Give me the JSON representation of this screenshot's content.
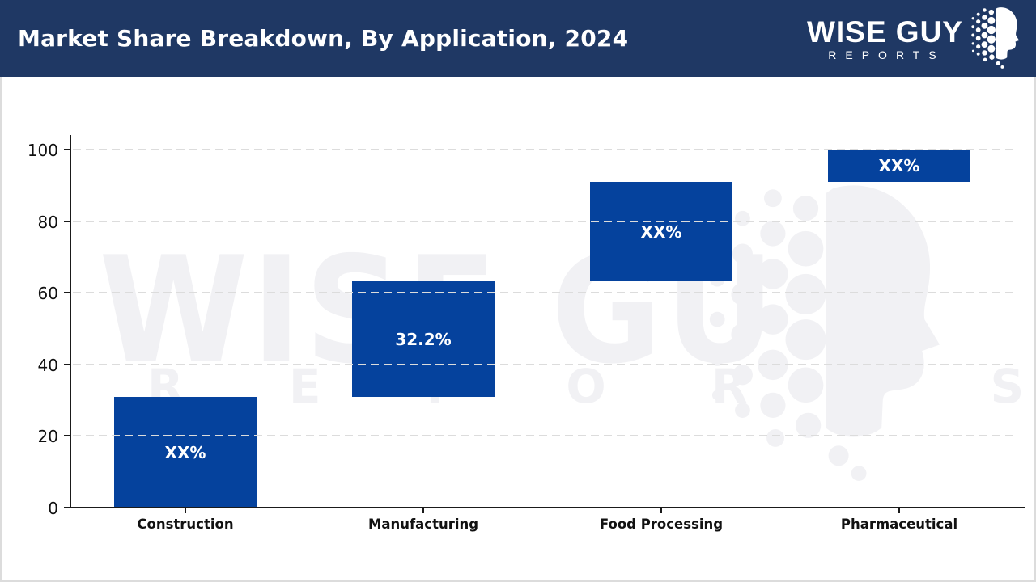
{
  "header": {
    "title": "Market Share Breakdown, By Application, 2024",
    "logo": {
      "line1": "WISE GUY",
      "line2": "REPORTS"
    }
  },
  "watermark": {
    "line1": "WISE GU",
    "line2": "R E P O R T S"
  },
  "colors": {
    "header_bg": "#1F3864",
    "bar": "#05429D",
    "axis": "#1A1A1A",
    "grid": "#DCDCDC",
    "watermark": "#F1F1F4",
    "bar_label_text": "#FFFFFF"
  },
  "chart_data": {
    "type": "bar",
    "subtype": "waterfall",
    "title": "Market Share Breakdown, By Application, 2024",
    "categories": [
      "Construction",
      "Manufacturing",
      "Food Processing",
      "Pharmaceutical"
    ],
    "segments": [
      {
        "category": "Construction",
        "start": 0,
        "end": 30.9,
        "label": "XX%"
      },
      {
        "category": "Manufacturing",
        "start": 30.9,
        "end": 63.1,
        "label": "32.2%"
      },
      {
        "category": "Food Processing",
        "start": 63.1,
        "end": 91.0,
        "label": "XX%"
      },
      {
        "category": "Pharmaceutical",
        "start": 91.0,
        "end": 100.0,
        "label": "XX%"
      }
    ],
    "yticks": [
      0,
      20,
      40,
      60,
      80,
      100
    ],
    "ylim": [
      0,
      100
    ],
    "xlabel": "",
    "ylabel": "",
    "grid": "horizontal-dashed",
    "legend": "none"
  }
}
